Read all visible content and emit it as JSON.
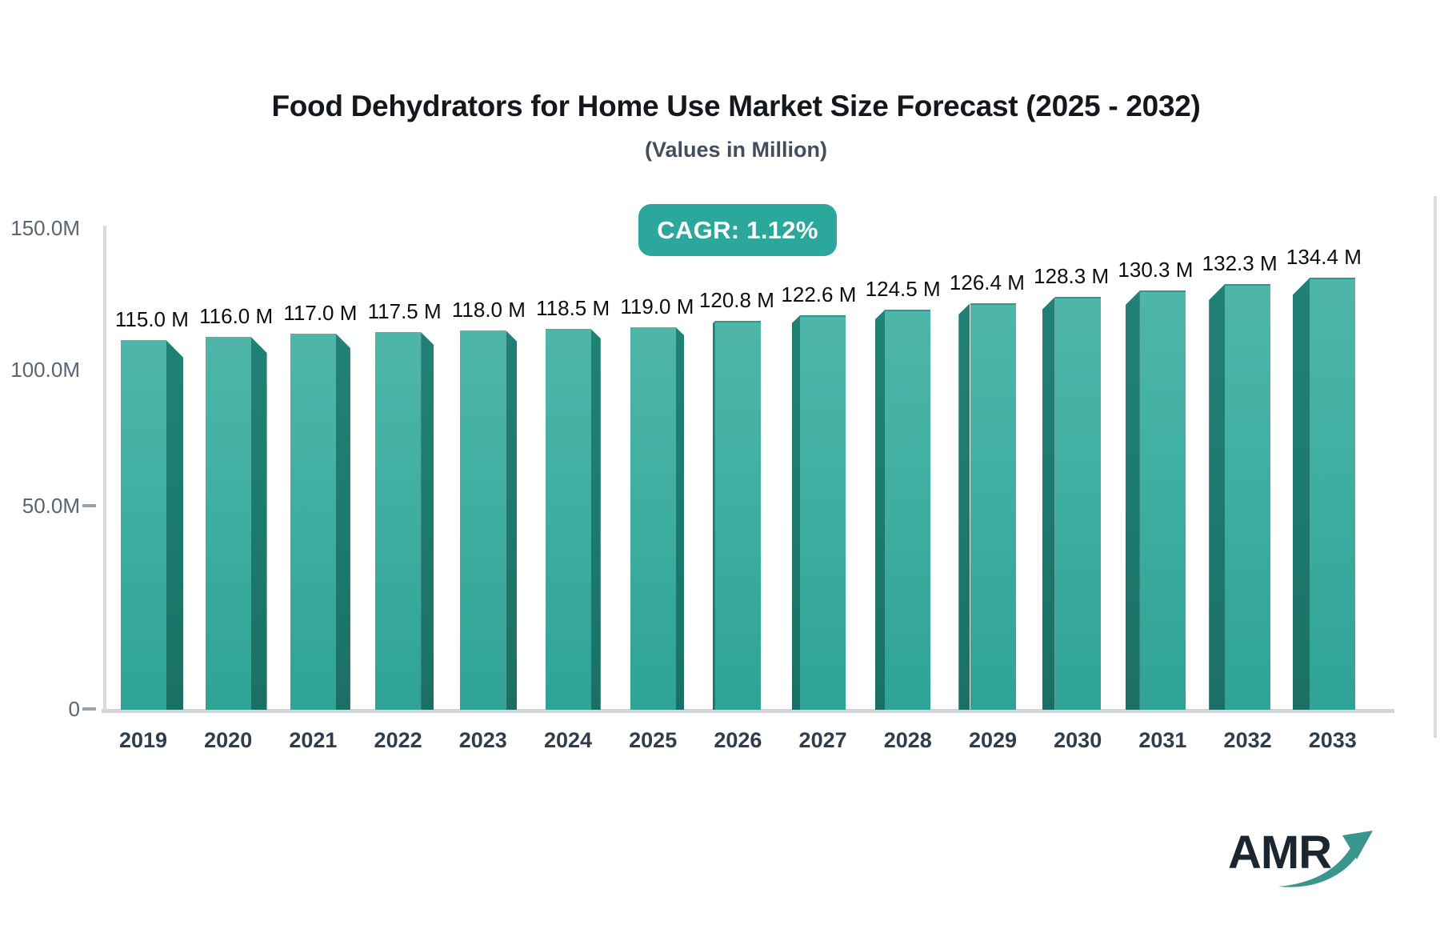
{
  "header": {
    "title": "Food Dehydrators for Home Use Market Size Forecast (2025 - 2032)",
    "subtitle": "(Values in Million)"
  },
  "badge": {
    "label": "CAGR: 1.12%"
  },
  "chart_data": {
    "type": "bar",
    "title": "Food Dehydrators for Home Use Market Size Forecast (2025 - 2032)",
    "subtitle": "(Values in Million)",
    "categories": [
      "2019",
      "2020",
      "2021",
      "2022",
      "2023",
      "2024",
      "2025",
      "2026",
      "2027",
      "2028",
      "2029",
      "2030",
      "2031",
      "2032",
      "2033"
    ],
    "values": [
      115.0,
      116.0,
      117.0,
      117.5,
      118.0,
      118.5,
      119.0,
      120.8,
      122.6,
      124.5,
      126.4,
      128.3,
      130.3,
      132.3,
      134.4
    ],
    "bar_labels": [
      "115.0 M",
      "116.0 M",
      "117.0 M",
      "117.5 M",
      "118.0 M",
      "118.5 M",
      "119.0 M",
      "120.8 M",
      "122.6 M",
      "124.5 M",
      "126.4 M",
      "128.3 M",
      "130.3 M",
      "132.3 M",
      "134.4 M"
    ],
    "cagr_label": "CAGR: 1.12%",
    "xlabel": "",
    "ylabel": "",
    "ylim": [
      0,
      150
    ],
    "ytick_labels": [
      "150.0M",
      "100.0M",
      "50.0M",
      "0"
    ],
    "grid": false,
    "legend": false,
    "style": "3d-perspective-columns",
    "colors": {
      "bar_face": "#3fb0a2",
      "bar_side": "#1e7d71",
      "badge_background": "#2ca79b",
      "axis_line": "#d5d9de",
      "value_label": "#0b0d0f",
      "year_label": "#303d4d",
      "ytick_label": "#5a6472"
    }
  },
  "logo": {
    "text": "AMR",
    "arrow_icon": "trend-up-arrow",
    "color": "#3a968d"
  }
}
